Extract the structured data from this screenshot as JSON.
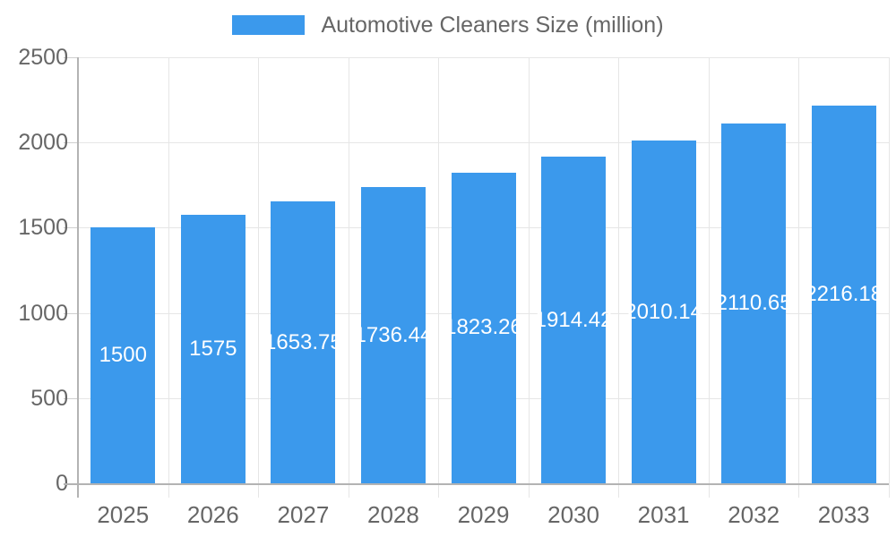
{
  "legend": {
    "items": [
      {
        "label": "Automotive Cleaners Size (million)"
      }
    ]
  },
  "chart_data": {
    "type": "bar",
    "title": "Automotive Cleaners Size (million)",
    "categories": [
      "2025",
      "2026",
      "2027",
      "2028",
      "2029",
      "2030",
      "2031",
      "2032",
      "2033"
    ],
    "values": [
      1500,
      1575,
      1653.75,
      1736.44,
      1823.26,
      1914.42,
      2010.14,
      2110.65,
      2216.18
    ],
    "value_labels": [
      "1500",
      "1575",
      "1653.75",
      "1736.44",
      "1823.26",
      "1914.42",
      "2010.14",
      "2110.65",
      "2216.18"
    ],
    "xlabel": "",
    "ylabel": "",
    "ylim": [
      0,
      2500
    ],
    "y_ticks": [
      0,
      500,
      1000,
      1500,
      2000,
      2500
    ],
    "y_tick_labels": [
      "0",
      "500",
      "1000",
      "1500",
      "2000",
      "2500"
    ],
    "grid": true,
    "legend_position": "top",
    "colors": {
      "bar": "#3B99EC",
      "bar_label": "#FFFFFF",
      "axis_text": "#666666",
      "grid_line": "#E6E6E6",
      "tick_line": "#CFCFCF",
      "axis_line": "#B3B3B3",
      "background": "#FFFFFF"
    }
  }
}
